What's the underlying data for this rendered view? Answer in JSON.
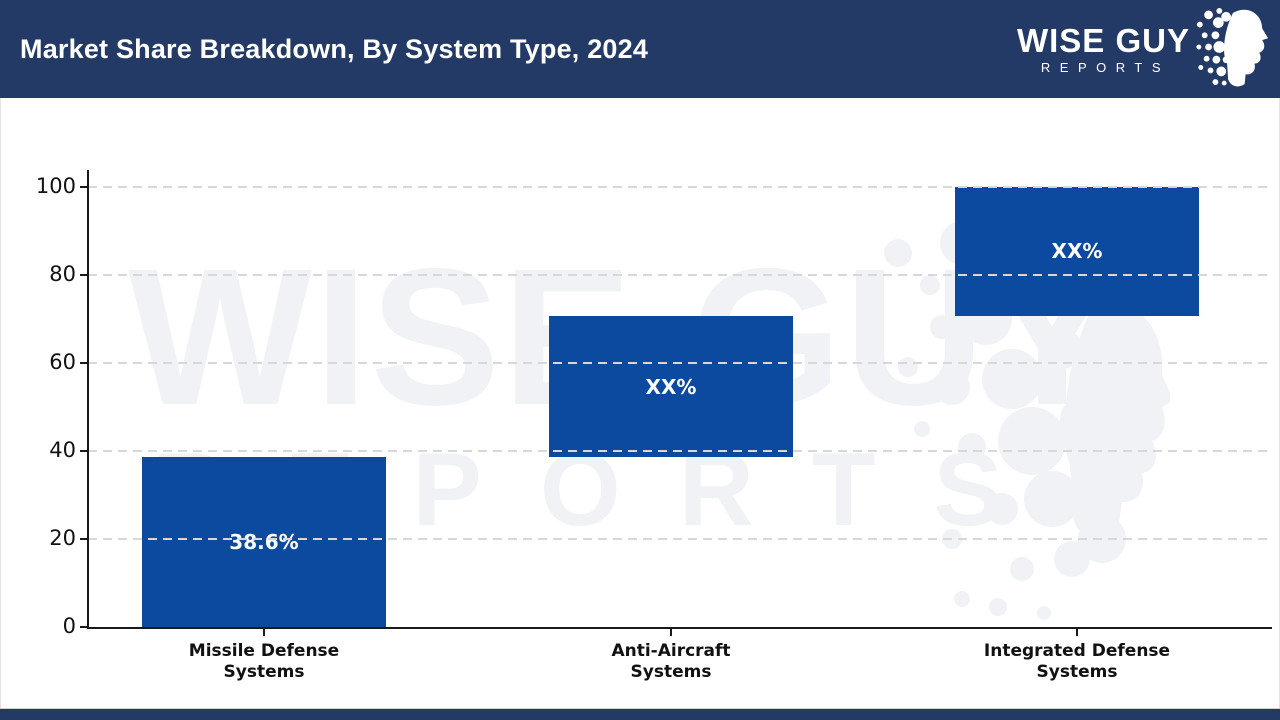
{
  "header": {
    "title": "Market Share Breakdown, By System Type, 2024",
    "bg_color": "#243a66",
    "logo": {
      "wordmark": "WISE GUY",
      "sub": "REPORTS"
    }
  },
  "watermark": {
    "wordmark": "WISE GUY",
    "sub": "REPORTS"
  },
  "chart_data": {
    "type": "bar",
    "subtype": "stacked-waterfall",
    "title": "Market Share Breakdown, By System Type, 2024",
    "categories": [
      [
        "Missile Defense",
        "Systems"
      ],
      [
        "Anti-Aircraft",
        "Systems"
      ],
      [
        "Integrated Defense",
        "Systems"
      ]
    ],
    "series": [
      {
        "name": "Market share (%)",
        "segments": [
          {
            "category": "Missile Defense Systems",
            "start": 0,
            "end": 38.6,
            "label": "38.6%"
          },
          {
            "category": "Anti-Aircraft Systems",
            "start": 38.6,
            "end": 70.7,
            "label": "XX%"
          },
          {
            "category": "Integrated Defense Systems",
            "start": 70.7,
            "end": 100,
            "label": "XX%"
          }
        ]
      }
    ],
    "yticks": [
      0,
      20,
      40,
      60,
      80,
      100
    ],
    "ylim": [
      0,
      104
    ],
    "xlabel": "",
    "ylabel": "",
    "grid": true,
    "grid_style": "dashed",
    "grid_color": "#d8d8d8",
    "bar_color": "#0b4a9e",
    "bar_label_color": "#ffffff",
    "axis_color": "#1a1a1a"
  }
}
